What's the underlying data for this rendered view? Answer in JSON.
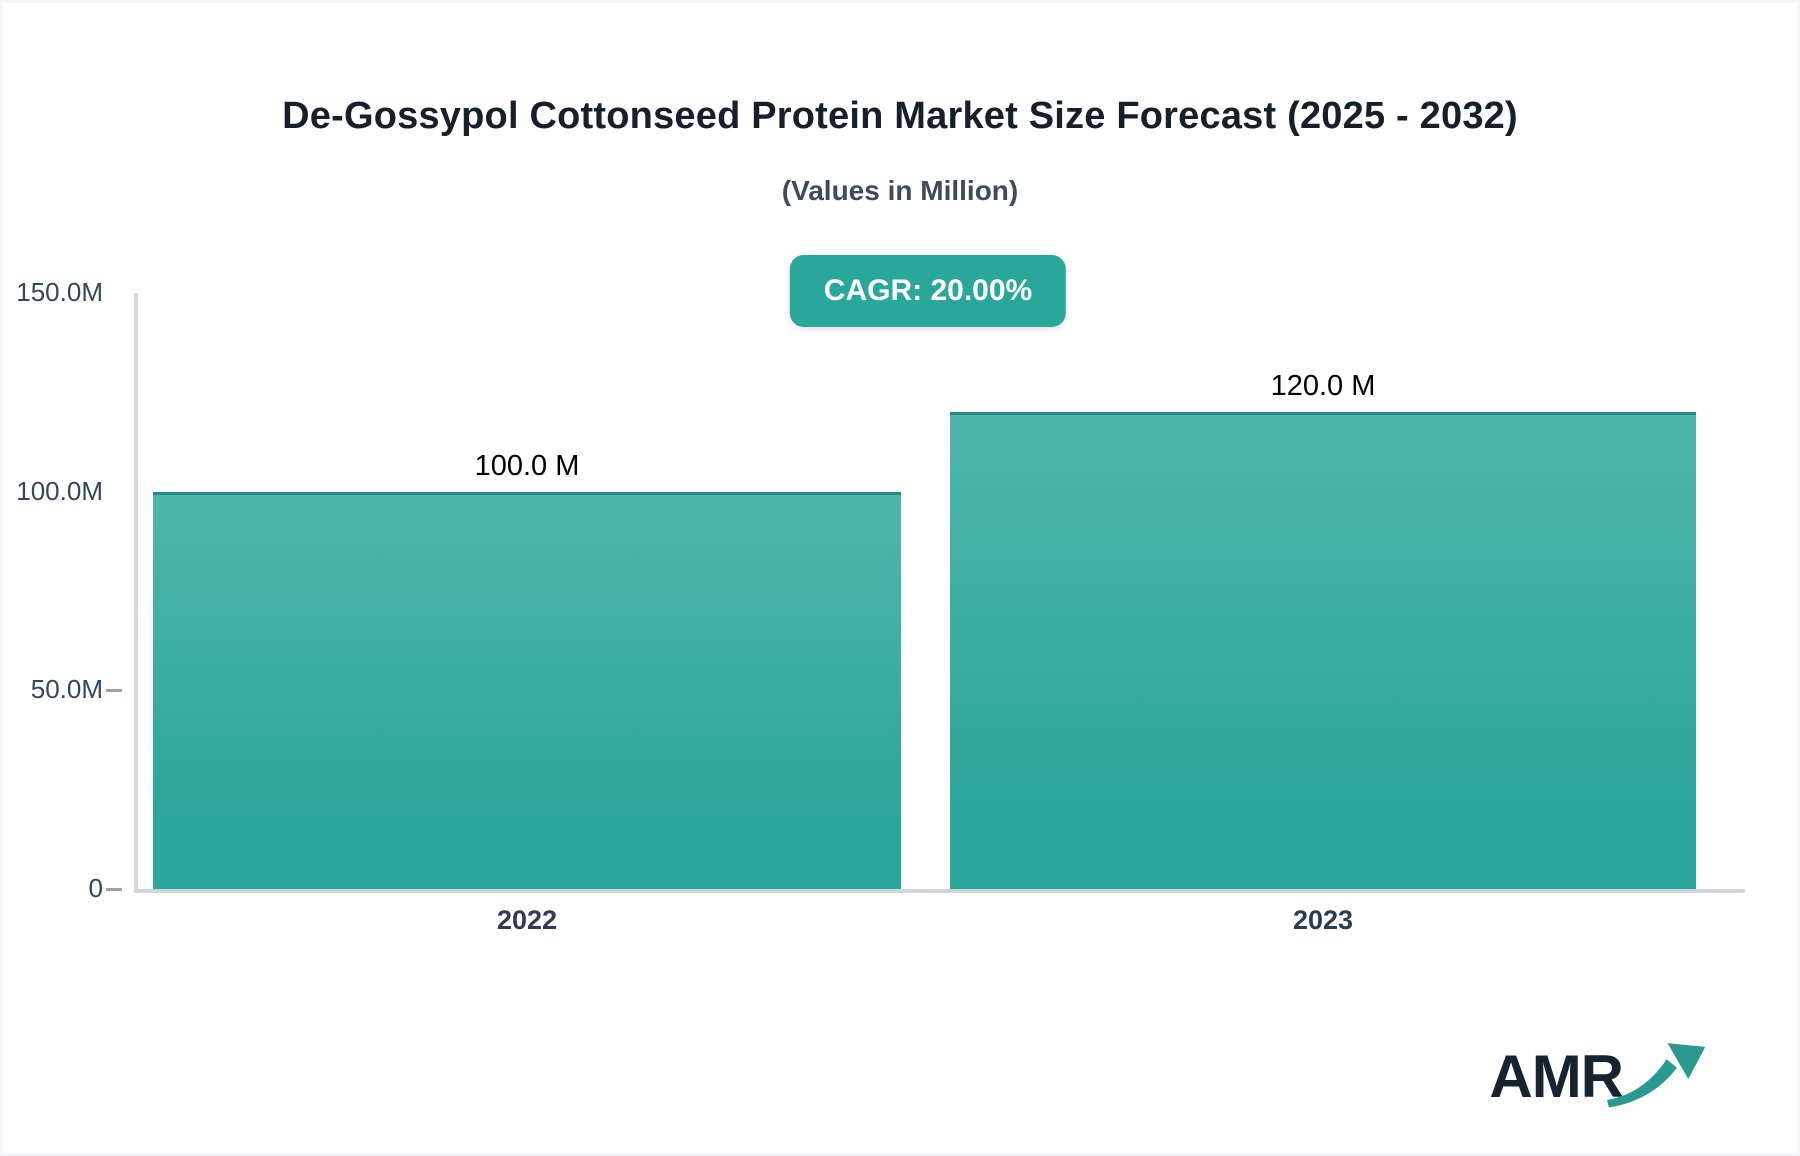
{
  "header": {
    "title": "De-Gossypol Cottonseed Protein Market Size Forecast (2025 - 2032)",
    "subtitle": "(Values in Million)",
    "cagr_badge": "CAGR: 20.00%"
  },
  "chart_data": {
    "type": "bar",
    "title": "De-Gossypol Cottonseed Protein Market Size Forecast (2025 - 2032)",
    "subtitle": "(Values in Million)",
    "unit": "Million",
    "cagr_percent": 20.0,
    "categories": [
      "2022",
      "2023"
    ],
    "values": [
      100,
      120
    ],
    "value_labels": [
      "100.0 M",
      "120.0 M"
    ],
    "ylim": [
      0,
      150
    ],
    "yticks": [
      {
        "label": "150.0M",
        "value": 150,
        "dash": false
      },
      {
        "label": "100.0M",
        "value": 100,
        "dash": false
      },
      {
        "label": "50.0M",
        "value": 50,
        "dash": true
      },
      {
        "label": "0",
        "value": 0,
        "dash": true
      }
    ],
    "grid": false,
    "legend": false
  },
  "colors": {
    "bar_gradient_top": "#4fb5ac",
    "bar_gradient_bottom": "#2aa69a",
    "bar_top_border": "#258a81",
    "badge_bg": "#2aa79b",
    "badge_text": "#ffffff",
    "axis_line": "#d5d9de",
    "tick_label": "#33475c",
    "category_label": "#2e3c50",
    "value_label": "#000000",
    "title_text": "#16202b",
    "logo_text": "#152430",
    "logo_arrow": "#2a9a90"
  },
  "logo": {
    "text": "AMR"
  }
}
